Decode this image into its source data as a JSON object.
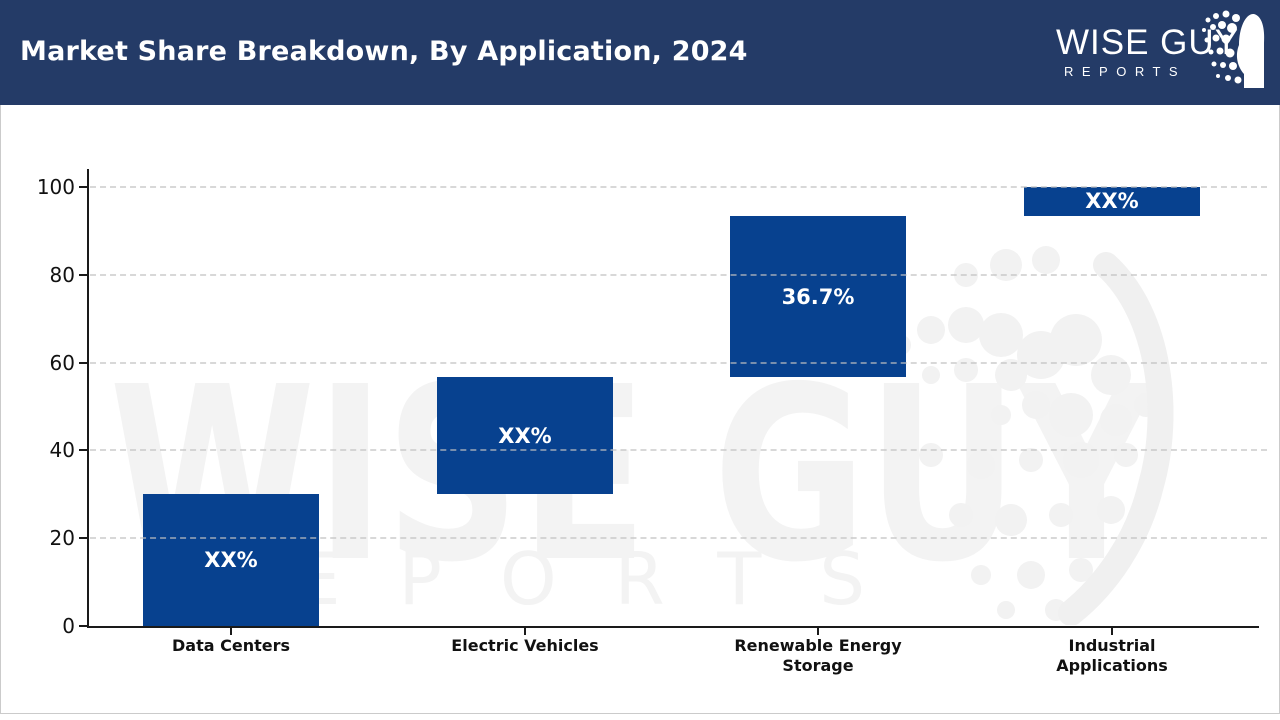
{
  "header": {
    "title": "Market Share Breakdown, By Application, 2024",
    "logo": {
      "line1": "WISE GUY",
      "line2": "REPORTS"
    }
  },
  "watermark": {
    "line1": "WISE GUY",
    "line2": "REPORTS"
  },
  "colors": {
    "header_bg": "#243b67",
    "bar_blue": "#07418f",
    "gridline": "#d9d9d9",
    "axis": "#1a1a1a",
    "watermark": "#f3f3f3",
    "panel_border": "#cbcbcb",
    "bar_label_text": "#ffffff"
  },
  "chart_data": {
    "type": "bar",
    "subtype": "waterfall",
    "categories": [
      "Data Centers",
      "Electric Vehicles",
      "Renewable Energy Storage",
      "Industrial Applications"
    ],
    "segments": [
      {
        "category": "Data Centers",
        "start": 0,
        "end": 30,
        "label": "XX%"
      },
      {
        "category": "Electric Vehicles",
        "start": 30,
        "end": 56.7,
        "label": "XX%"
      },
      {
        "category": "Renewable Energy Storage",
        "start": 56.7,
        "end": 93.4,
        "label": "36.7%"
      },
      {
        "category": "Industrial Applications",
        "start": 93.4,
        "end": 100,
        "label": "XX%"
      }
    ],
    "title": "Market Share Breakdown, By Application, 2024",
    "xlabel": "",
    "ylabel": "",
    "ylim": [
      0,
      100
    ],
    "yticks": [
      0,
      20,
      40,
      60,
      80,
      100
    ],
    "grid": "horizontal-dashed",
    "legend": "none"
  }
}
